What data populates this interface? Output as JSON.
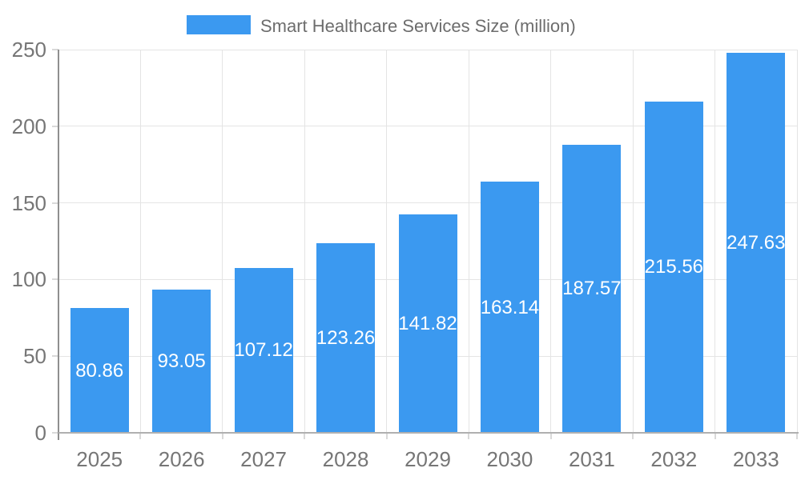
{
  "chart_data": {
    "type": "bar",
    "title": "Smart Healthcare Services Size (million)",
    "legend": {
      "position": "top",
      "entries": [
        "Smart Healthcare Services Size (million)"
      ]
    },
    "categories": [
      "2025",
      "2026",
      "2027",
      "2028",
      "2029",
      "2030",
      "2031",
      "2032",
      "2033"
    ],
    "series": [
      {
        "name": "Smart Healthcare Services Size (million)",
        "values": [
          80.86,
          93.05,
          107.12,
          123.26,
          141.82,
          163.14,
          187.57,
          215.56,
          247.63
        ]
      }
    ],
    "value_labels": [
      "80.86",
      "93.05",
      "107.12",
      "123.26",
      "141.82",
      "163.14",
      "187.57",
      "215.56",
      "247.63"
    ],
    "xlabel": "",
    "ylabel": "",
    "ylim": [
      0,
      250
    ],
    "y_ticks": [
      0,
      50,
      100,
      150,
      200,
      250
    ],
    "grid": true,
    "colors": {
      "bar": "#3B99F0",
      "value_label": "#FFFFFF",
      "axis_label": "#767676",
      "legend_label": "#6D6D6D",
      "gridline": "#E4E4E4",
      "x_axis_line": "#B0B0B0",
      "y_axis_line": "#8F8F8F",
      "tick": "#D9D9D9",
      "background": "#FFFFFF"
    }
  }
}
